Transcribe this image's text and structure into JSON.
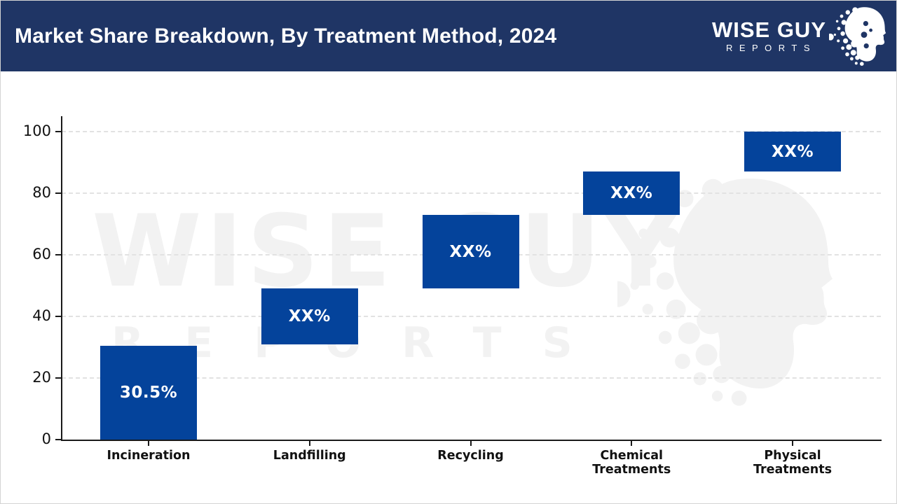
{
  "header": {
    "title": "Market Share Breakdown, By Treatment Method, 2024",
    "logo": {
      "line1": "WISE GUY",
      "line2": "REPORTS"
    }
  },
  "watermark": {
    "line1": "WISE GUY",
    "line2": "REPORTS"
  },
  "chart_data": {
    "type": "bar",
    "subtype": "waterfall",
    "title": "Market Share Breakdown, By Treatment Method, 2024",
    "categories": [
      "Incineration",
      "Landfilling",
      "Recycling",
      "Chemical Treatments",
      "Physical Treatments"
    ],
    "segments": [
      {
        "category": "Incineration",
        "start": 0,
        "end": 30.5,
        "label": "30.5%"
      },
      {
        "category": "Landfilling",
        "start": 31,
        "end": 49,
        "label": "XX%"
      },
      {
        "category": "Recycling",
        "start": 49,
        "end": 73,
        "label": "XX%"
      },
      {
        "category": "Chemical Treatments",
        "start": 73,
        "end": 87,
        "label": "XX%"
      },
      {
        "category": "Physical Treatments",
        "start": 87,
        "end": 100,
        "label": "XX%"
      }
    ],
    "yticks": [
      0,
      20,
      40,
      60,
      80,
      100
    ],
    "ylim": [
      0,
      100
    ],
    "xlabel": "",
    "ylabel": "",
    "grid": "horizontal-dashed",
    "legend": "none",
    "bar_color": "#04439B",
    "bar_label_color": "#FFFFFF"
  },
  "colors": {
    "header_bg": "#1F3565",
    "bar": "#04439B",
    "grid": "#E2E2E2",
    "axis": "#1A1A1A",
    "watermark": "#F2F2F2",
    "frame_border": "#D4D4D4"
  }
}
